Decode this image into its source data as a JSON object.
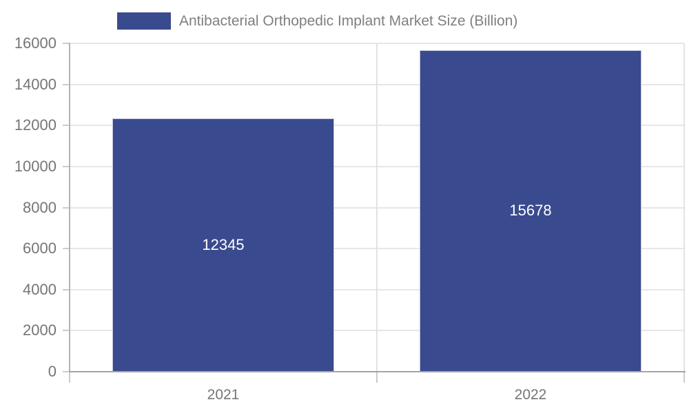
{
  "chart_data": {
    "type": "bar",
    "title": "Antibacterial Orthopedic Implant Market Size (Billion)",
    "categories": [
      "2021",
      "2022"
    ],
    "values": [
      12345,
      15678
    ],
    "bar_value_labels": [
      "12345",
      "15678"
    ],
    "xlabel": "",
    "ylabel": "",
    "ylim": [
      0,
      16000
    ],
    "yticks": [
      0,
      2000,
      4000,
      6000,
      8000,
      10000,
      12000,
      14000,
      16000
    ],
    "grid": true,
    "legend_position": "top"
  },
  "colors": {
    "bar_fill": "#3A4A8F",
    "bar_border": "#c2c7dd",
    "bar_label_text": "#ffffff",
    "axis_text": "#757575",
    "legend_text": "#7f7f7f",
    "gridline": "#e6e6e6",
    "boundary_gridline": "#e2e2e2",
    "y_axis_line": "#b3b3b3",
    "x_axis_line": "#a3a3a3",
    "tick": "#cccccc",
    "background": "#ffffff"
  }
}
